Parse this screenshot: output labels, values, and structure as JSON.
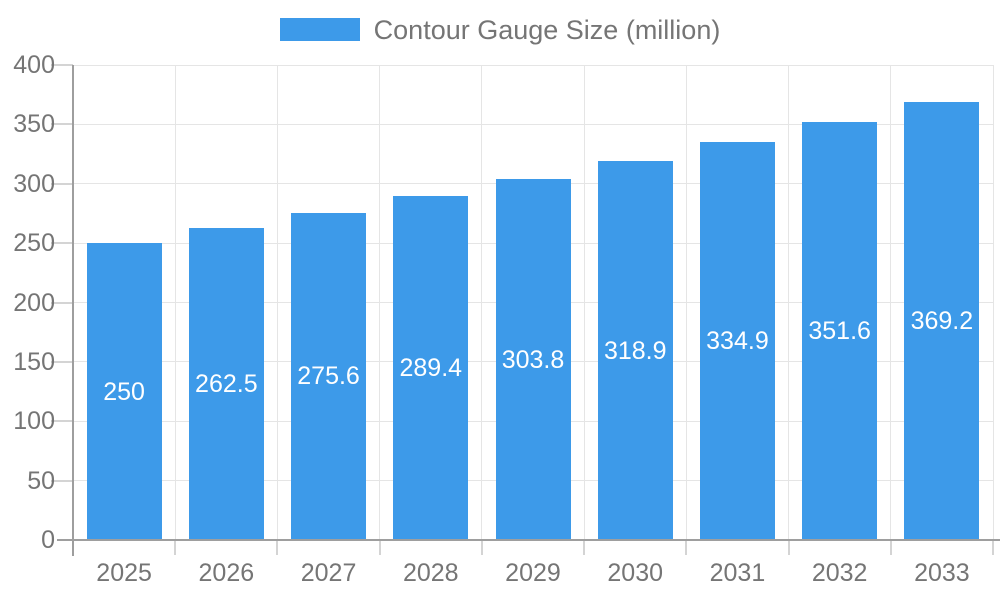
{
  "chart_data": {
    "type": "bar",
    "title": "",
    "legend": "Contour Gauge Size (million)",
    "legend_position": "top",
    "categories": [
      "2025",
      "2026",
      "2027",
      "2028",
      "2029",
      "2030",
      "2031",
      "2032",
      "2033"
    ],
    "values": [
      250,
      262.5,
      275.6,
      289.4,
      303.8,
      318.9,
      334.9,
      351.6,
      369.2
    ],
    "value_labels": [
      "250",
      "262.5",
      "275.6",
      "289.4",
      "303.8",
      "318.9",
      "334.9",
      "351.6",
      "369.2"
    ],
    "xlabel": "",
    "ylabel": "",
    "ylim": [
      0,
      400
    ],
    "yticks": [
      0,
      50,
      100,
      150,
      200,
      250,
      300,
      350,
      400
    ],
    "grid": true,
    "colors": {
      "bar": "#3d9ae9",
      "grid": "#e5e5e5",
      "axis": "#9e9e9e",
      "tick": "#d4d4d4",
      "axis_text": "#757575",
      "value_text": "#ffffff",
      "background": "#ffffff"
    }
  }
}
